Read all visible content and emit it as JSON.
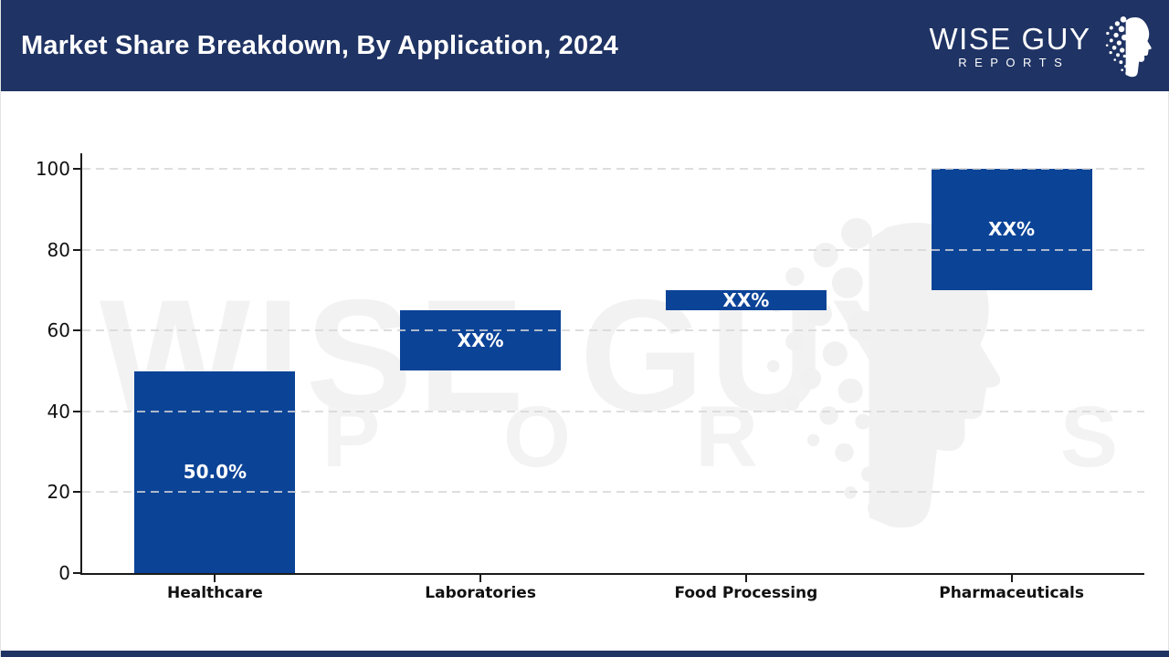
{
  "header": {
    "title": "Market Share Breakdown, By Application, 2024",
    "logo": {
      "line1": "WISE GUY",
      "line2": "REPORTS"
    }
  },
  "watermark": {
    "line1": "WISE GUY",
    "line2": "P O R T S"
  },
  "colors": {
    "header_bg": "#1f3364",
    "bar": "#0b4397",
    "bar_label": "#ffffff",
    "axis": "#1a1a1a",
    "gridline": "#dcdcdc"
  },
  "chart_data": {
    "type": "bar",
    "subtype": "waterfall",
    "title": "Market Share Breakdown, By Application, 2024",
    "categories": [
      "Healthcare",
      "Laboratories",
      "Food Processing",
      "Pharmaceuticals"
    ],
    "segments": [
      {
        "category": "Healthcare",
        "start": 0,
        "end": 50,
        "label": "50.0%"
      },
      {
        "category": "Laboratories",
        "start": 50,
        "end": 65,
        "label": "XX%"
      },
      {
        "category": "Food Processing",
        "start": 65,
        "end": 70,
        "label": "XX%"
      },
      {
        "category": "Pharmaceuticals",
        "start": 70,
        "end": 100,
        "label": "XX%"
      }
    ],
    "xlabel": "",
    "ylabel": "",
    "ylim": [
      0,
      105
    ],
    "yticks": [
      0,
      20,
      40,
      60,
      80,
      100
    ],
    "grid": "horizontal-dashed",
    "legend": "none"
  }
}
